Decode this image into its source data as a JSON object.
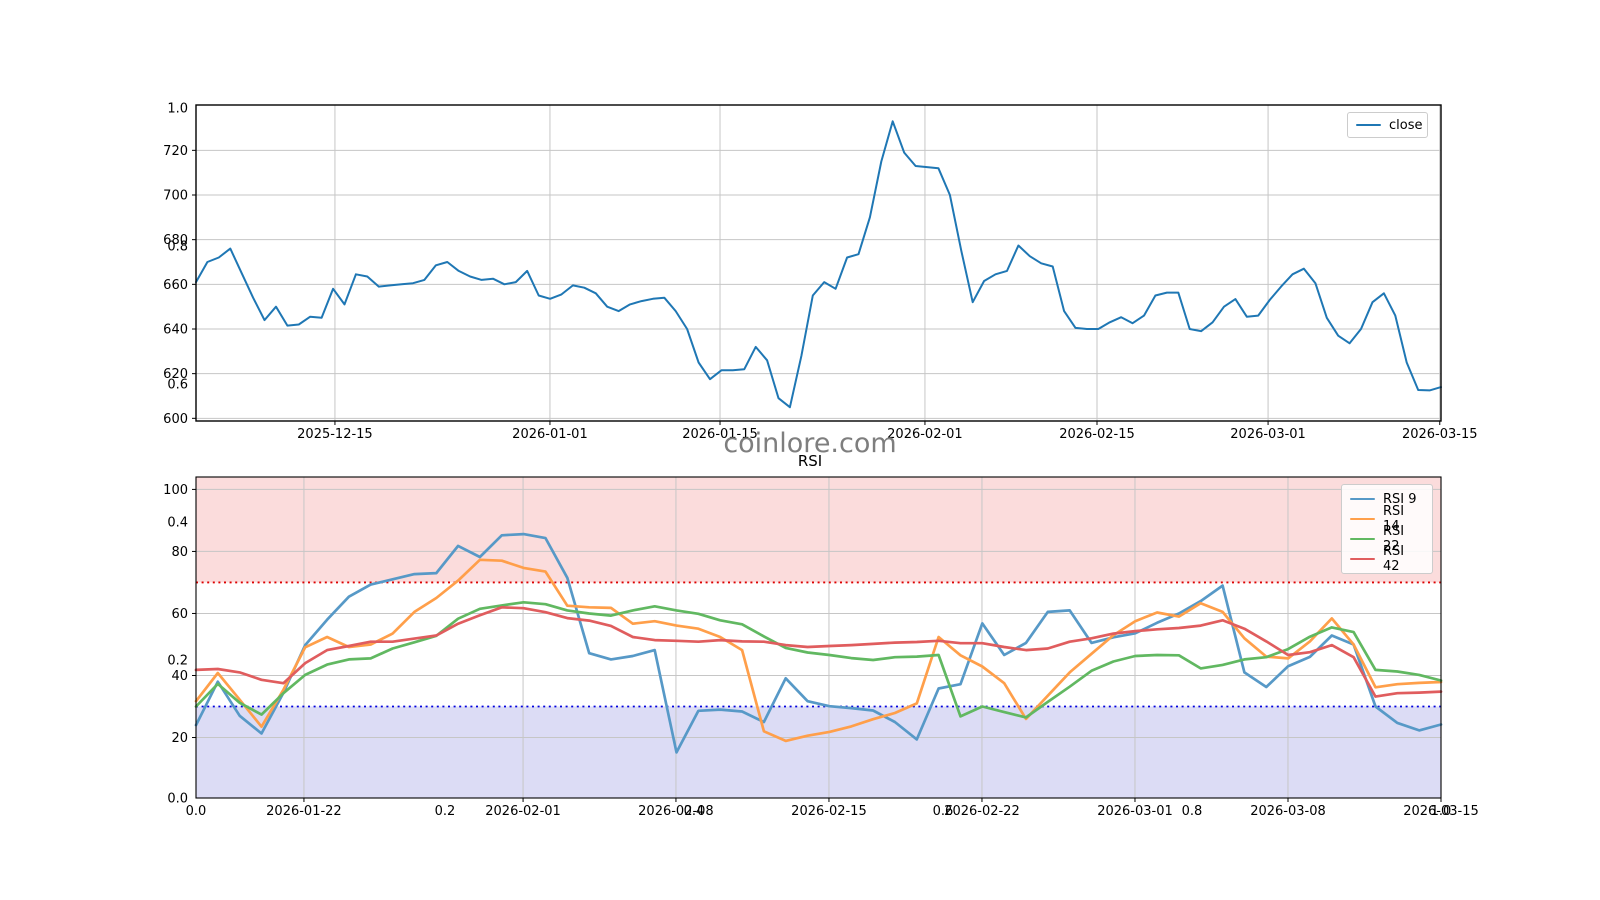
{
  "watermark": "coinlore.com",
  "chart_data": [
    {
      "type": "line",
      "title": "",
      "xlabel": "",
      "ylabel": "",
      "grid": true,
      "legend_position": "upper right",
      "ylim": [
        598.8,
        740.3
      ],
      "yticks": [
        600,
        620,
        640,
        660,
        680,
        700,
        720
      ],
      "x_ticks": [
        {
          "label": "2025-12-15",
          "f": 0.1116
        },
        {
          "label": "2026-01-01",
          "f": 0.2843
        },
        {
          "label": "2026-01-15",
          "f": 0.4209
        },
        {
          "label": "2026-02-01",
          "f": 0.5855
        },
        {
          "label": "2026-02-15",
          "f": 0.7237
        },
        {
          "label": "2026-03-01",
          "f": 0.8611
        },
        {
          "label": "2026-03-15",
          "f": 0.999
        }
      ],
      "series": [
        {
          "name": "close",
          "color": "#1f77b4",
          "width": 2,
          "values": [
            661,
            670,
            672,
            676,
            665,
            654,
            644,
            650,
            641.5,
            642,
            645.5,
            645,
            658,
            651,
            664.5,
            663.5,
            659,
            659.5,
            660,
            660.5,
            662,
            668.5,
            670,
            666,
            663.5,
            662,
            662.5,
            660,
            661,
            666,
            655,
            653.5,
            655.5,
            659.5,
            658.5,
            656,
            650,
            648,
            651,
            652.5,
            653.5,
            654,
            648,
            640,
            625,
            617.5,
            621.5,
            621.5,
            622,
            632,
            626,
            609,
            605,
            628,
            655,
            661,
            658,
            672,
            673.5,
            690,
            715,
            733,
            719,
            713,
            712.5,
            712,
            700,
            675,
            652,
            661.5,
            664.5,
            666,
            677.4,
            672.6,
            669.4,
            668,
            648,
            640.5,
            640,
            640,
            643,
            645.3,
            642.6,
            646,
            655,
            656.3,
            656.3,
            640,
            639,
            643,
            650,
            653.4,
            645.5,
            646,
            653,
            659,
            664.5,
            667,
            660.5,
            645,
            637,
            633.6,
            640,
            652,
            656,
            646,
            625,
            612.7,
            612.5,
            614
          ]
        }
      ]
    },
    {
      "type": "line",
      "title": "RSI",
      "xlabel": "",
      "ylabel": "",
      "grid": true,
      "legend_position": "upper right",
      "ylim": [
        0.5,
        104
      ],
      "yticks": [
        20,
        40,
        60,
        80,
        100
      ],
      "overbought_level": 70,
      "oversold_level": 30,
      "hlines": [
        {
          "y": 70,
          "color": "#dd0000",
          "style": "dotted",
          "name": "overbought-line"
        },
        {
          "y": 30,
          "color": "#0000dd",
          "style": "dotted",
          "name": "oversold-line"
        }
      ],
      "bands": [
        {
          "from": 70,
          "to": 104,
          "color": "#fbdcdc",
          "name": "overbought-band"
        },
        {
          "from": 0.5,
          "to": 30,
          "color": "#dcdcf5",
          "name": "oversold-band"
        }
      ],
      "x_ticks": [
        {
          "label": "2026-01-22",
          "f": 0.0867
        },
        {
          "label": "2026-02-01",
          "f": 0.2627
        },
        {
          "label": "2026-02-08",
          "f": 0.3855
        },
        {
          "label": "2026-02-15",
          "f": 0.5084
        },
        {
          "label": "2026-02-22",
          "f": 0.6313
        },
        {
          "label": "2026-03-01",
          "f": 0.7542
        },
        {
          "label": "2026-03-08",
          "f": 0.8771
        },
        {
          "label": "2026-03-15",
          "f": 1.0
        }
      ],
      "series": [
        {
          "name": "RSI 9",
          "color": "#5799c7",
          "width": 2.7,
          "values": [
            24,
            38,
            27,
            21.3,
            34.4,
            49.8,
            58,
            65.4,
            69.3,
            71,
            72.7,
            73,
            81.8,
            78.2,
            85.2,
            85.6,
            84.3,
            71.5,
            47.2,
            45.2,
            46.3,
            48.2,
            15.2,
            28.6,
            29,
            28.4,
            25,
            39.1,
            31.7,
            30.1,
            29.5,
            28.7,
            25,
            19.4,
            35.8,
            37.2,
            56.8,
            46.6,
            50.5,
            60.5,
            61,
            50.5,
            52.3,
            53.6,
            57,
            60,
            64,
            69,
            41,
            36.3,
            43,
            46,
            52.9,
            50,
            30,
            24.7,
            22.3,
            24.2
          ]
        },
        {
          "name": "RSI 14",
          "color": "#ff9f4a",
          "width": 2.7,
          "values": [
            31.7,
            40.8,
            32.2,
            23.5,
            35.4,
            49.1,
            52.4,
            49.2,
            50,
            53.5,
            60.5,
            65,
            70.6,
            77.3,
            77,
            74.7,
            73.5,
            62.5,
            62,
            61.8,
            56.7,
            57.5,
            56.1,
            55.1,
            52.4,
            48.2,
            22,
            18.9,
            20.6,
            21.8,
            23.6,
            25.9,
            27.9,
            31,
            52.4,
            46.5,
            42.9,
            37.5,
            26,
            33.5,
            41,
            47,
            53,
            57.5,
            60.3,
            59,
            63.3,
            60.5,
            52,
            46.1,
            45.5,
            51,
            58.4,
            50,
            36.2,
            37.2,
            37.6,
            37.9
          ]
        },
        {
          "name": "RSI 22",
          "color": "#61b861",
          "width": 2.7,
          "values": [
            30,
            37.3,
            31.2,
            27.4,
            34.3,
            40.2,
            43.5,
            45.2,
            45.5,
            48.7,
            50.7,
            52.8,
            58.3,
            61.5,
            62.6,
            63.6,
            63,
            61,
            60,
            59.3,
            61,
            62.3,
            61,
            59.9,
            57.8,
            56.5,
            52.6,
            48.9,
            47.4,
            46.6,
            45.6,
            45,
            45.9,
            46.1,
            46.6,
            26.8,
            30,
            28.2,
            26.5,
            31.5,
            36.4,
            41.5,
            44.5,
            46.3,
            46.6,
            46.5,
            42.3,
            43.4,
            45.2,
            45.9,
            48.5,
            52.5,
            55.5,
            54,
            41.8,
            41.3,
            40.2,
            38.4
          ]
        },
        {
          "name": "RSI 42",
          "color": "#e05d5e",
          "width": 2.7,
          "values": [
            41.8,
            42.1,
            41,
            38.6,
            37.5,
            44,
            48.2,
            49.5,
            50.9,
            50.9,
            51.9,
            52.9,
            56.7,
            59.4,
            62,
            61.7,
            60.4,
            58.5,
            57.7,
            56,
            52.4,
            51.4,
            51.2,
            50.9,
            51.4,
            51,
            50.9,
            49.8,
            49.2,
            49.5,
            49.8,
            50.2,
            50.6,
            50.8,
            51.2,
            50.4,
            50.4,
            49.2,
            48.2,
            48.7,
            50.9,
            52,
            53.5,
            54.3,
            54.9,
            55.3,
            56.1,
            57.8,
            55.1,
            51,
            46.6,
            47.5,
            49.8,
            45.9,
            33.2,
            34.3,
            34.5,
            34.8
          ]
        }
      ]
    }
  ],
  "overlay_axis": {
    "x_tick_labels": [
      "0.0",
      "0.2",
      "0.4",
      "0.6",
      "0.8",
      "1.0"
    ],
    "y_tick_labels": [
      "1.0",
      "0.8",
      "0.6",
      "0.4",
      "0.2",
      "0.0"
    ]
  }
}
